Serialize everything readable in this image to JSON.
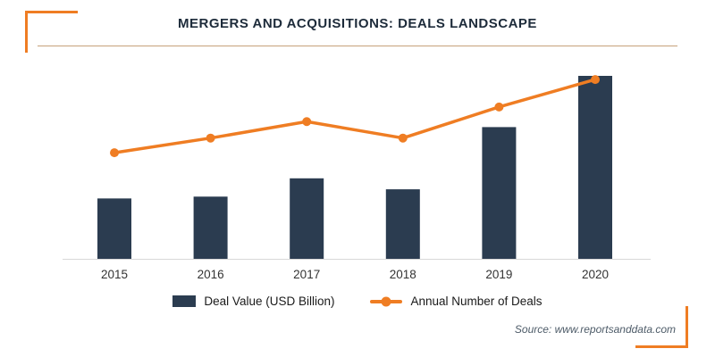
{
  "page": {
    "title": "MERGERS AND ACQUISITIONS: DEALS LANDSCAPE",
    "source": "Source: www.reportsanddata.com"
  },
  "colors": {
    "accent": "#ef7d23",
    "bar": "#2b3c50",
    "line": "#ef7d23",
    "axis": "#d8d8d8",
    "title": "#1d2b3a",
    "divider": "#c7a17a",
    "tick_label": "#333333"
  },
  "legend": {
    "bar_label": "Deal Value (USD Billion)",
    "line_label": "Annual Number of Deals"
  },
  "chart_data": {
    "type": "bar+line",
    "title": "MERGERS AND ACQUISITIONS: DEALS LANDSCAPE",
    "categories": [
      "2015",
      "2016",
      "2017",
      "2018",
      "2019",
      "2020"
    ],
    "series": [
      {
        "name": "Deal Value (USD Billion)",
        "type": "bar",
        "values": [
          33,
          34,
          44,
          38,
          72,
          100
        ]
      },
      {
        "name": "Annual Number of Deals",
        "type": "line",
        "values": [
          58,
          66,
          75,
          66,
          83,
          98
        ]
      }
    ],
    "xlabel": "",
    "ylabel": "",
    "ylim": [
      0,
      105
    ],
    "grid": false,
    "y_axis_visible": false,
    "legend_position": "bottom"
  }
}
